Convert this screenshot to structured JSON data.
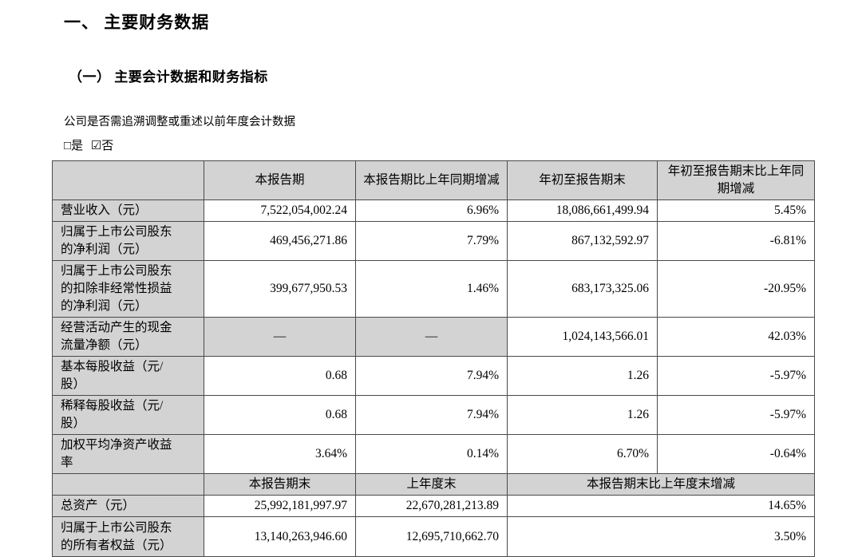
{
  "page": {
    "section_title": "一、 主要财务数据",
    "subsection_title": "（一） 主要会计数据和财务指标",
    "question": "公司是否需追溯调整或重述以前年度会计数据",
    "option_yes": "□是",
    "option_no": "☑否"
  },
  "table": {
    "period_header": {
      "col1": "",
      "col2": "本报告期",
      "col3": "本报告期比上年同期增减",
      "col4": "年初至报告期末",
      "col5": "年初至报告期末比上年同期增减"
    },
    "period_rows": [
      {
        "label": "营业收入（元）",
        "values": [
          "7,522,054,002.24",
          "6.96%",
          "18,086,661,499.94",
          "5.45%"
        ]
      },
      {
        "label": "归属于上市公司股东的净利润（元）",
        "values": [
          "469,456,271.86",
          "7.79%",
          "867,132,592.97",
          "-6.81%"
        ]
      },
      {
        "label": "归属于上市公司股东的扣除非经常性损益的净利润（元）",
        "values": [
          "399,677,950.53",
          "1.46%",
          "683,173,325.06",
          "-20.95%"
        ]
      },
      {
        "label": "经营活动产生的现金流量净额（元）",
        "values": [
          "—",
          "—",
          "1,024,143,566.01",
          "42.03%"
        ]
      },
      {
        "label": "基本每股收益（元/股）",
        "values": [
          "0.68",
          "7.94%",
          "1.26",
          "-5.97%"
        ]
      },
      {
        "label": "稀释每股收益（元/股）",
        "values": [
          "0.68",
          "7.94%",
          "1.26",
          "-5.97%"
        ]
      },
      {
        "label": "加权平均净资产收益率",
        "values": [
          "3.64%",
          "0.14%",
          "6.70%",
          "-0.64%"
        ]
      }
    ],
    "yearend_header": {
      "col1": "",
      "col2": "本报告期末",
      "col3": "上年度末",
      "col45": "本报告期末比上年度末增减"
    },
    "yearend_rows": [
      {
        "label": "总资产（元）",
        "values": [
          "25,992,181,997.97",
          "22,670,281,213.89",
          "14.65%"
        ]
      },
      {
        "label": "归属于上市公司股东的所有者权益（元）",
        "values": [
          "13,140,263,946.60",
          "12,695,710,662.70",
          "3.50%"
        ]
      }
    ],
    "colors": {
      "header_bg": "#d3d3d3",
      "border": "#4a4a4a"
    }
  }
}
